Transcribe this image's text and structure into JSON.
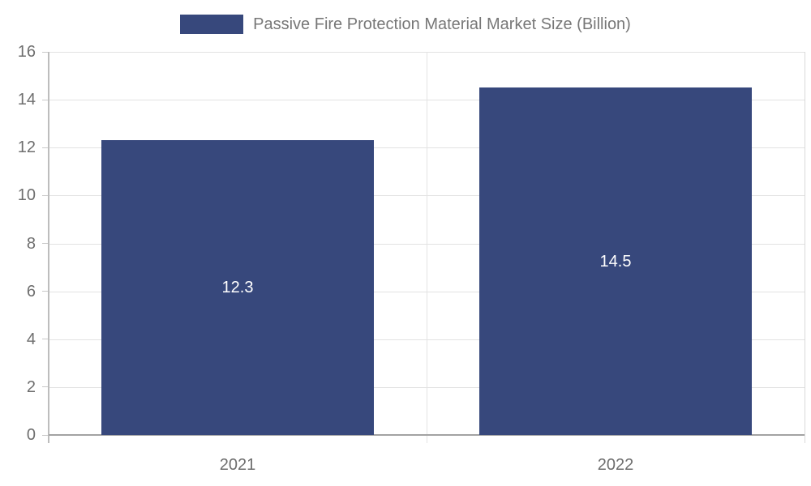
{
  "legend": {
    "label": "Passive Fire Protection Material Market Size (Billion)"
  },
  "chart_data": {
    "type": "bar",
    "title": "Passive Fire Protection Material Market Size (Billion)",
    "categories": [
      "2021",
      "2022"
    ],
    "values": [
      12.3,
      14.5
    ],
    "data_labels": [
      "12.3",
      "14.5"
    ],
    "xlabel": "",
    "ylabel": "",
    "ylim": [
      0,
      16
    ],
    "yticks": [
      0,
      2,
      4,
      6,
      8,
      10,
      12,
      14,
      16
    ],
    "grid": true,
    "legend_position": "top",
    "colors": {
      "bar": "#37487C",
      "bar_label_text": "#ffffff",
      "legend_text": "#777777",
      "axis_tick_text": "#6e6e6e",
      "gridline": "#e2e2e2",
      "bottom_axis": "#a3a3a3",
      "left_axis": "#bdbdbd",
      "right_border": "#d9d9d9"
    }
  }
}
